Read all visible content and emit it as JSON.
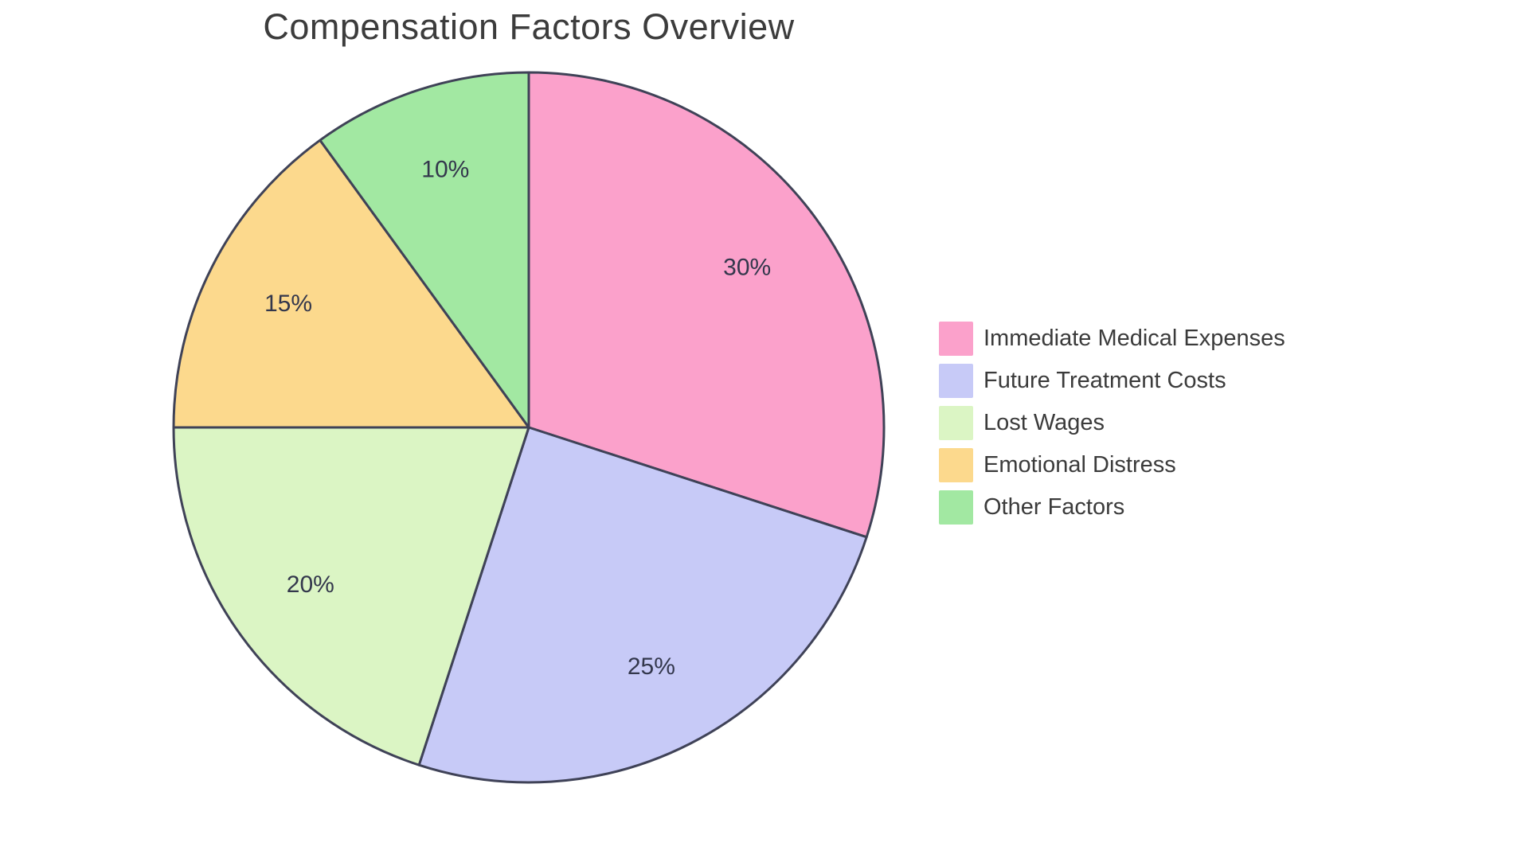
{
  "chart_data": {
    "type": "pie",
    "title": "Compensation Factors Overview",
    "labels": [
      "Immediate Medical Expenses",
      "Future Treatment Costs",
      "Lost Wages",
      "Emotional Distress",
      "Other Factors"
    ],
    "values": [
      30,
      25,
      20,
      15,
      10
    ],
    "slice_labels": [
      "30%",
      "25%",
      "20%",
      "15%",
      "10%"
    ],
    "colors": [
      "#fba1cb",
      "#c7caf7",
      "#dbf5c4",
      "#fcd98d",
      "#a2e8a2"
    ],
    "stroke_color": "#3f4257",
    "stroke_width": 3,
    "start_angle_deg": 0,
    "direction": "clockwise",
    "label_radius_ratio": 0.76,
    "legend_position": "right",
    "background": "#ffffff"
  },
  "layout_note": "static pie chart image, no interactive chrome"
}
